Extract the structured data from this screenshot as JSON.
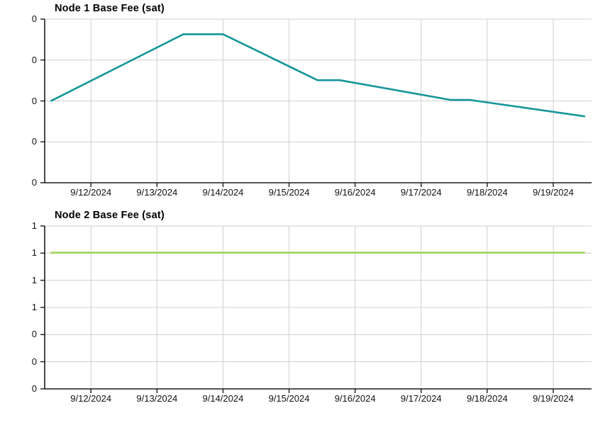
{
  "page": {
    "background_color": "#ffffff"
  },
  "colors": {
    "axis": "#1a1a1a",
    "grid": "#cfcfcf",
    "tick_text": "#111111",
    "title_text": "#000000",
    "node1_line": "#159598",
    "node2_line": "#a0d25a"
  },
  "chart_data": [
    {
      "type": "line",
      "title": "Node 1 Base Fee (sat)",
      "xlabel": "",
      "ylabel": "",
      "grid": true,
      "legend": "none",
      "x_range_days": [
        11.3,
        19.58
      ],
      "x_ticks": [
        {
          "day": 12,
          "label": "9/12/2024"
        },
        {
          "day": 13,
          "label": "9/13/2024"
        },
        {
          "day": 14,
          "label": "9/14/2024"
        },
        {
          "day": 15,
          "label": "9/15/2024"
        },
        {
          "day": 16,
          "label": "9/16/2024"
        },
        {
          "day": 17,
          "label": "9/17/2024"
        },
        {
          "day": 18,
          "label": "9/18/2024"
        },
        {
          "day": 19,
          "label": "9/19/2024"
        }
      ],
      "y_tick_labels_top_to_bottom": [
        "0",
        "0",
        "0",
        "0",
        "0"
      ],
      "series": [
        {
          "name": "Node 1 base fee",
          "color": "#159598",
          "points_xday_yaxisfrac": [
            [
              11.4,
              0.501
            ],
            [
              13.4,
              0.908
            ],
            [
              14.0,
              0.908
            ],
            [
              15.43,
              0.627
            ],
            [
              15.77,
              0.627
            ],
            [
              17.45,
              0.506
            ],
            [
              17.74,
              0.506
            ],
            [
              19.47,
              0.406
            ]
          ]
        }
      ]
    },
    {
      "type": "line",
      "title": "Node 2 Base Fee (sat)",
      "xlabel": "",
      "ylabel": "",
      "grid": true,
      "legend": "none",
      "x_range_days": [
        11.3,
        19.58
      ],
      "x_ticks": [
        {
          "day": 12,
          "label": "9/12/2024"
        },
        {
          "day": 13,
          "label": "9/13/2024"
        },
        {
          "day": 14,
          "label": "9/14/2024"
        },
        {
          "day": 15,
          "label": "9/15/2024"
        },
        {
          "day": 16,
          "label": "9/16/2024"
        },
        {
          "day": 17,
          "label": "9/17/2024"
        },
        {
          "day": 18,
          "label": "9/18/2024"
        },
        {
          "day": 19,
          "label": "9/19/2024"
        }
      ],
      "y_tick_labels_top_to_bottom": [
        "1",
        "1",
        "1",
        "1",
        "0",
        "0",
        "0"
      ],
      "ylim_implied": [
        0,
        1.2
      ],
      "constant_value": 1,
      "series": [
        {
          "name": "Node 2 base fee",
          "color": "#a0d25a",
          "points_xday_yaxisfrac": [
            [
              11.4,
              0.836
            ],
            [
              19.47,
              0.836
            ]
          ]
        }
      ]
    }
  ]
}
